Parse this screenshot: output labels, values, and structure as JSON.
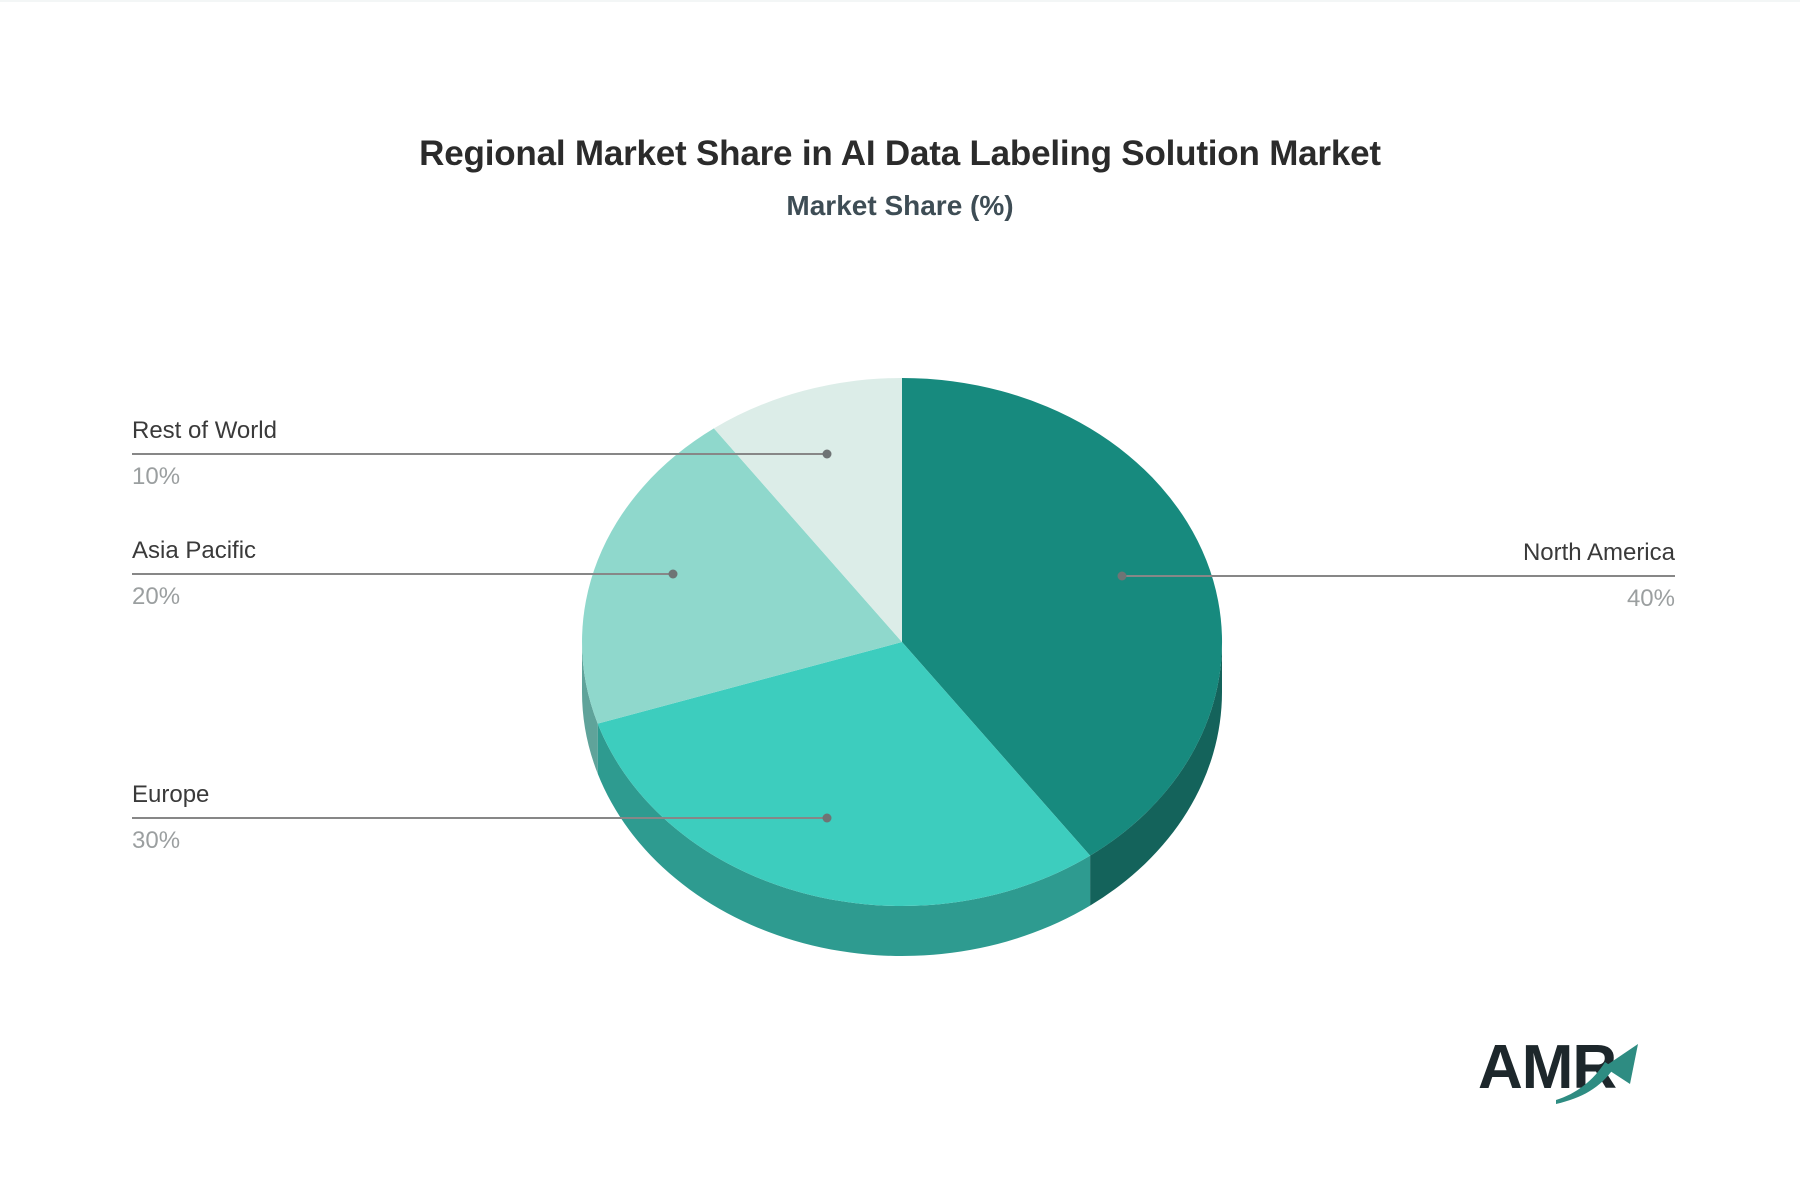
{
  "page": {
    "title": "Regional Market Share in AI Data Labeling Solution Market",
    "subtitle": "Market Share (%)"
  },
  "logo": {
    "text": "AMR"
  },
  "chart_data": {
    "type": "pie",
    "style": "3d-extruded-pie",
    "title": "Regional Market Share in AI Data Labeling Solution Market",
    "subtitle": "Market Share (%)",
    "value_unit": "percent",
    "start_angle": "12-o-clock",
    "direction": "clockwise",
    "legend_position": "callout-leader-lines",
    "slices": [
      {
        "label": "North America",
        "value": 40,
        "display_value": "40%",
        "callout_side": "right",
        "color": "#178A7E",
        "side_color": "#14635B"
      },
      {
        "label": "Europe",
        "value": 30,
        "display_value": "30%",
        "callout_side": "left",
        "color": "#3DCDBE",
        "side_color": "#2E9B90"
      },
      {
        "label": "Asia Pacific",
        "value": 20,
        "display_value": "20%",
        "callout_side": "left",
        "color": "#8FD8CC",
        "side_color": "#5FA39A"
      },
      {
        "label": "Rest of World",
        "value": 10,
        "display_value": "10%",
        "callout_side": "left",
        "color": "#DCEDE8",
        "side_color": "#BCD9D2"
      }
    ],
    "leader_line_color": "#878787",
    "leader_dot_color": "#6F7475",
    "label_color": "#3A3A3A",
    "value_label_color": "#9B9FA0"
  }
}
